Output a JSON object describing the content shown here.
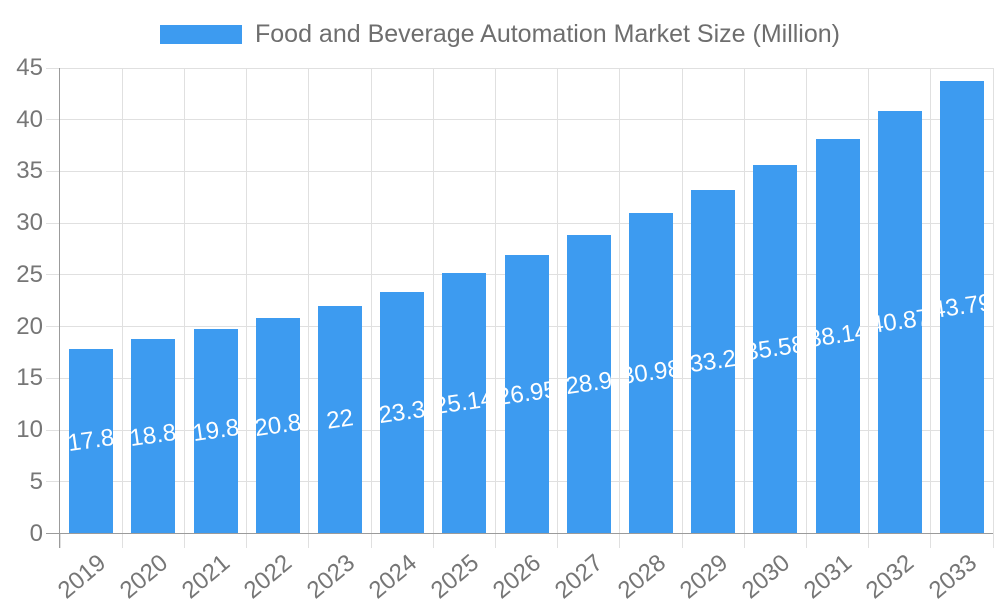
{
  "legend": {
    "label": "Food and Beverage Automation Market Size (Million)"
  },
  "chart_data": {
    "type": "bar",
    "title": "Food and Beverage Automation Market Size (Million)",
    "categories": [
      "2019",
      "2020",
      "2021",
      "2022",
      "2023",
      "2024",
      "2025",
      "2026",
      "2027",
      "2028",
      "2029",
      "2030",
      "2031",
      "2032",
      "2033"
    ],
    "values": [
      17.8,
      18.8,
      19.8,
      20.8,
      22,
      23.3,
      25.14,
      26.95,
      28.9,
      30.98,
      33.2,
      35.58,
      38.14,
      40.87,
      43.79
    ],
    "bar_labels": [
      "17.8",
      "18.8",
      "19.8",
      "20.8",
      "22",
      "23.3",
      "25.14",
      "26.95",
      "28.9",
      "30.98",
      "33.2",
      "35.58",
      "38.14",
      "40.87",
      "43.79"
    ],
    "xlabel": "",
    "ylabel": "",
    "ylim": [
      0,
      45
    ],
    "ytick_step": 5,
    "yticks": [
      0,
      5,
      10,
      15,
      20,
      25,
      30,
      35,
      40,
      45
    ],
    "grid": true,
    "grid_offset_vertical_lines": true,
    "legend_position": "top",
    "bar_label_position": "middle",
    "colors": {
      "bar": "#3d9bf0",
      "grid": "#e0e0e0",
      "axis": "#9b9b9b",
      "tick_text": "#767676",
      "legend_text": "#6e6e6e",
      "bar_label_text": "#ffffff"
    }
  }
}
